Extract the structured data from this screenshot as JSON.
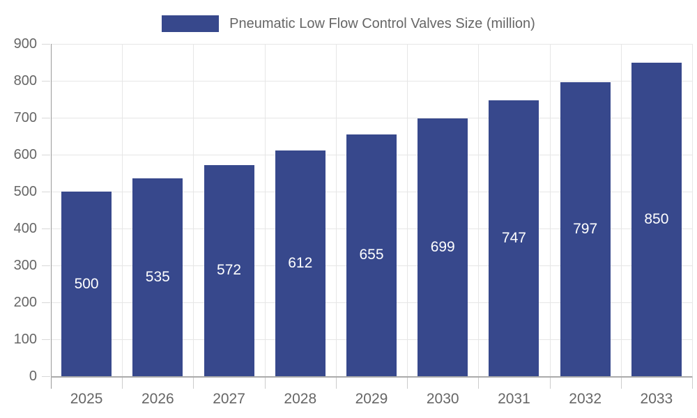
{
  "chart_data": {
    "type": "bar",
    "title": "Pneumatic Low Flow Control Valves Size (million)",
    "categories": [
      "2025",
      "2026",
      "2027",
      "2028",
      "2029",
      "2030",
      "2031",
      "2032",
      "2033"
    ],
    "values": [
      500,
      535,
      572,
      612,
      655,
      699,
      747,
      797,
      850
    ],
    "xlabel": "",
    "ylabel": "",
    "ylim": [
      0,
      900
    ],
    "ytick_step": 100,
    "grid": true,
    "legend_position": "top-center",
    "bar_labels_inside": true,
    "colors": {
      "bar": "#37488C",
      "bar_label": "#ffffff",
      "axis_text": "#666666",
      "legend_text": "#666666",
      "gridline": "#e6e6e6",
      "axis_line": "#999999"
    }
  }
}
